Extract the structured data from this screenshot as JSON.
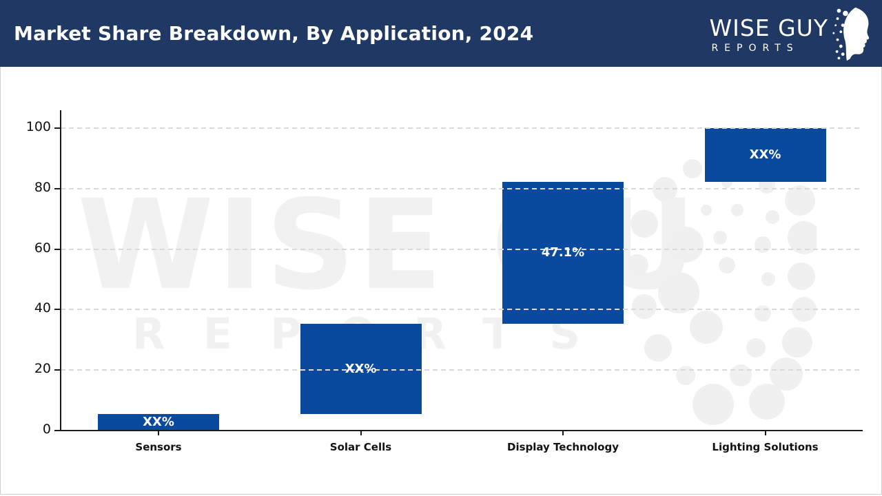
{
  "header": {
    "title": "Market Share Breakdown, By Application, 2024",
    "logo": {
      "wordmark": "WISE GUY",
      "reports_label": "REPORTS"
    }
  },
  "watermark": {
    "wordmark": "WISE GU",
    "reports_label": "REPORTS"
  },
  "colors": {
    "header_bg": "#1f3864",
    "bar": "#0a4a9e",
    "bar_label": "#ffffff",
    "gridline": "#d9d9d9",
    "axis": "#1a1a1a",
    "watermark": "#f1f1f1",
    "frame_border": "#cfcfcf"
  },
  "chart_data": {
    "type": "bar",
    "subtype": "waterfall",
    "title": "Market Share Breakdown, By Application, 2024",
    "categories": [
      "Sensors",
      "Solar Cells",
      "Display Technology",
      "Lighting Solutions"
    ],
    "segments": [
      {
        "category": "Sensors",
        "start": 0,
        "end": 5.5,
        "label": "XX%"
      },
      {
        "category": "Solar Cells",
        "start": 5.5,
        "end": 35.2,
        "label": "XX%"
      },
      {
        "category": "Display Technology",
        "start": 35.2,
        "end": 82.3,
        "label": "47.1%"
      },
      {
        "category": "Lighting Solutions",
        "start": 82.3,
        "end": 100,
        "label": "XX%"
      }
    ],
    "xlabel": "",
    "ylabel": "",
    "ylim": [
      0,
      105
    ],
    "yticks": [
      0,
      20,
      40,
      60,
      80,
      100
    ],
    "grid": "horizontal-dashed",
    "legend": "none"
  }
}
